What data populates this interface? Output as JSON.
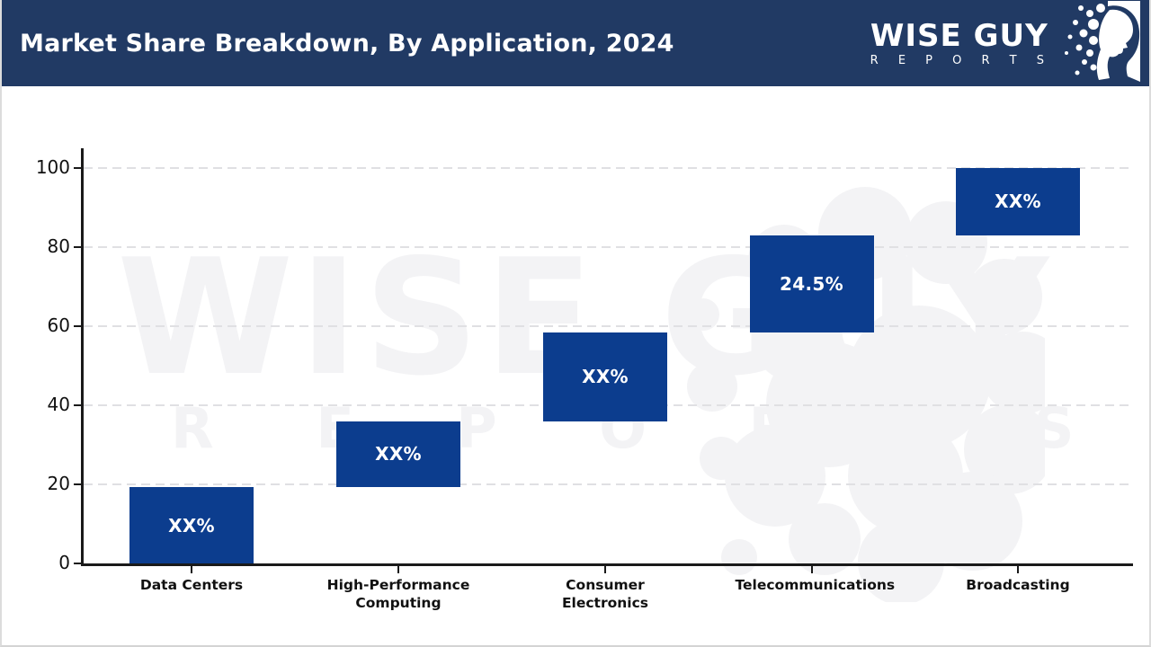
{
  "header": {
    "title": "Market Share Breakdown, By Application, 2024",
    "logo": {
      "wordmark": "WISE GUY",
      "subtext": "R E P O R T S"
    }
  },
  "watermark": {
    "wordmark": "WISE GUY",
    "subtext": "R E P O R T S"
  },
  "colors": {
    "header_bg": "#213a64",
    "bar_fill": "#0c3d8e",
    "bar_label": "#ffffff",
    "gridline": "#e0e0e3",
    "axis": "#1a1a1a",
    "watermark": "#f3f3f5"
  },
  "chart_data": {
    "type": "bar",
    "subtype": "waterfall",
    "title": "Market Share Breakdown, By Application, 2024",
    "categories": [
      "Data Centers",
      "High-Performance Computing",
      "Consumer Electronics",
      "Telecommunications",
      "Broadcasting"
    ],
    "segments": [
      {
        "category": "Data Centers",
        "start": 0,
        "end": 19.3,
        "display_label": "XX%"
      },
      {
        "category": "High-Performance Computing",
        "start": 19.3,
        "end": 36,
        "display_label": "XX%"
      },
      {
        "category": "Consumer Electronics",
        "start": 36,
        "end": 58.5,
        "display_label": "XX%"
      },
      {
        "category": "Telecommunications",
        "start": 58.5,
        "end": 83,
        "display_label": "24.5%"
      },
      {
        "category": "Broadcasting",
        "start": 83,
        "end": 100,
        "display_label": "XX%"
      }
    ],
    "ylim": [
      0,
      100
    ],
    "yticks": [
      0,
      20,
      40,
      60,
      80,
      100
    ],
    "grid": "horizontal dashed",
    "legend": "none"
  }
}
